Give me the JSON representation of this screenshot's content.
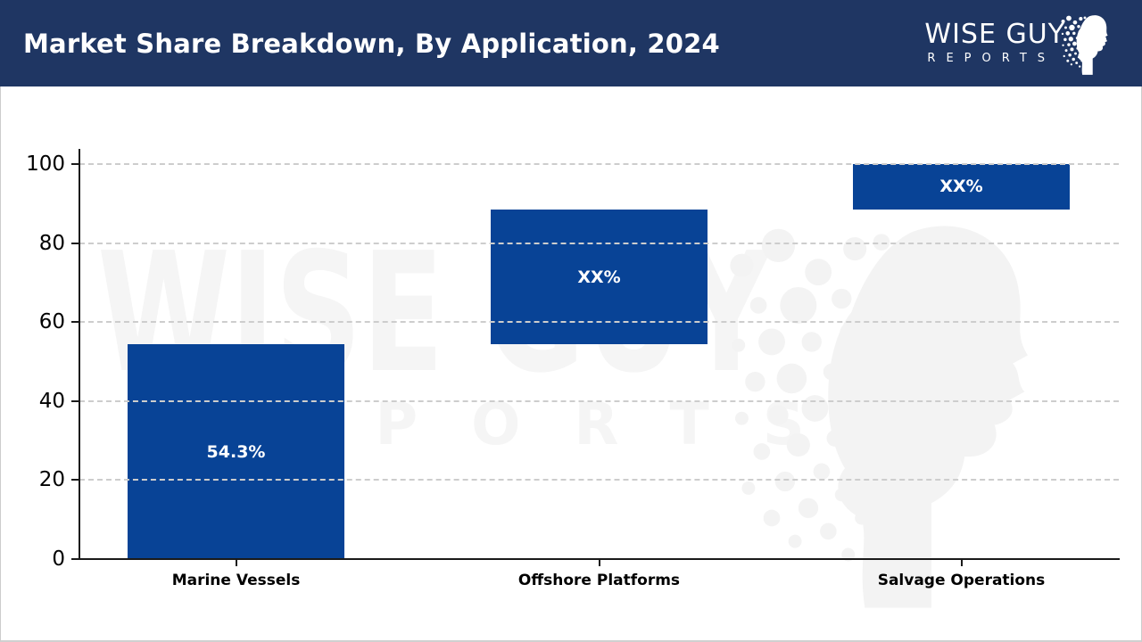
{
  "header": {
    "title": "Market Share Breakdown, By Application, 2024",
    "logo": {
      "line1": "WISE GUY",
      "line2": "REPORTS"
    }
  },
  "watermark": {
    "line1": "WISE GUY",
    "line2": "REPORTS"
  },
  "chart_data": {
    "type": "bar",
    "subtype": "waterfall",
    "title": "Market Share Breakdown, By Application, 2024",
    "categories": [
      "Marine Vessels",
      "Offshore Platforms",
      "Salvage Operations"
    ],
    "segments": [
      {
        "category": "Marine Vessels",
        "start": 0,
        "end": 54.3,
        "label": "54.3%"
      },
      {
        "category": "Offshore Platforms",
        "start": 54.3,
        "end": 88.5,
        "label": "XX%"
      },
      {
        "category": "Salvage Operations",
        "start": 88.5,
        "end": 100,
        "label": "XX%"
      }
    ],
    "ylim": [
      0,
      100
    ],
    "yticks": [
      0,
      20,
      40,
      60,
      80,
      100
    ],
    "xlabel": "",
    "ylabel": "",
    "grid": "horizontal-dashed",
    "legend": "none",
    "colors": {
      "bar": "#084396",
      "bar_label": "#ffffff",
      "axis": "#1a1a1a",
      "gridline": "#cdcdcd",
      "header_bg": "#1f3663",
      "header_text": "#ffffff",
      "watermark": "#f5f5f5"
    }
  }
}
